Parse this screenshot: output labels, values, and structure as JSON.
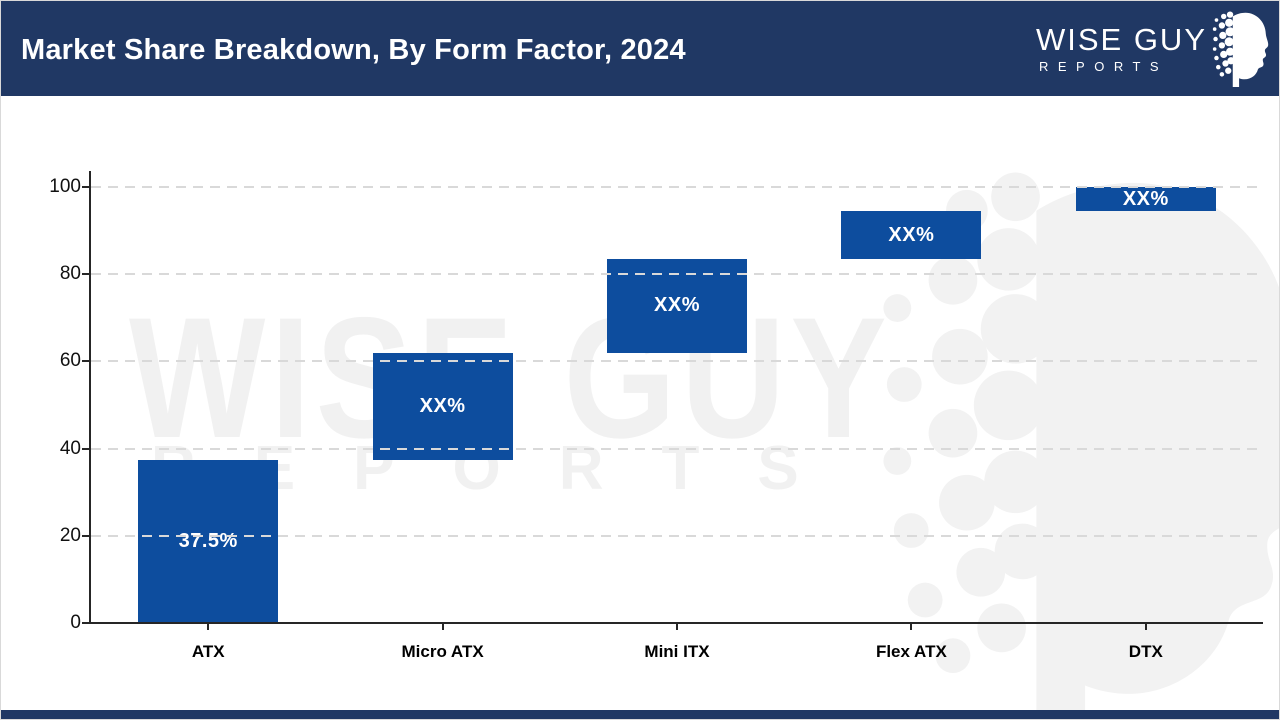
{
  "header": {
    "title": "Market Share Breakdown, By Form Factor, 2024",
    "logo": {
      "line1": "WISE GUY",
      "line2": "REPORTS"
    }
  },
  "watermark": {
    "line1": "WISE GUY",
    "line2": "REPORTS"
  },
  "colors": {
    "header_bg": "#203864",
    "bar": "#0d4d9e",
    "grid": "#d9d9d9",
    "axis": "#262626",
    "watermark": "#f1f1f1"
  },
  "chart_data": {
    "type": "bar",
    "variant": "waterfall",
    "title": "Market Share Breakdown, By Form Factor, 2024",
    "categories": [
      "ATX",
      "Micro ATX",
      "Mini ITX",
      "Flex ATX",
      "DTX"
    ],
    "series": [
      {
        "name": "Market Share (%)",
        "segments": [
          {
            "category": "ATX",
            "start": 0,
            "end": 37.5,
            "label": "37.5%"
          },
          {
            "category": "Micro ATX",
            "start": 37.5,
            "end": 62,
            "label": "XX%"
          },
          {
            "category": "Mini ITX",
            "start": 62,
            "end": 83.5,
            "label": "XX%"
          },
          {
            "category": "Flex ATX",
            "start": 83.5,
            "end": 94.5,
            "label": "XX%"
          },
          {
            "category": "DTX",
            "start": 94.5,
            "end": 100,
            "label": "XX%"
          }
        ]
      }
    ],
    "xlabel": "",
    "ylabel": "",
    "yticks": [
      0,
      20,
      40,
      60,
      80,
      100
    ],
    "ylim": [
      0,
      103.7
    ],
    "grid": "horizontal-dashed",
    "legend": "none",
    "bar_color": "#0d4d9e",
    "value_label_color": "#ffffff"
  }
}
